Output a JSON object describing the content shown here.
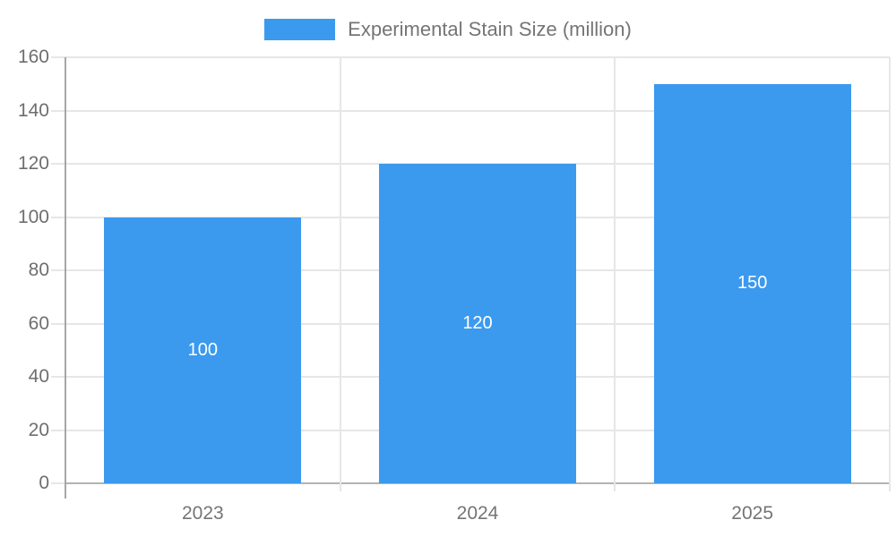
{
  "window": {
    "background": "#ffffff"
  },
  "legend": {
    "label": "Experimental Stain Size (million)"
  },
  "colors": {
    "bar": "#3B9AEE",
    "grid": "#e6e6e6",
    "axis_y_line": "#a6a6a6",
    "axis_x_line": "#b3b3b3",
    "tick_text": "#6e6e6e",
    "category_text": "#757575",
    "legend_text": "#757575",
    "value_label_text": "#ffffff"
  },
  "chart_data": {
    "type": "bar",
    "title": "",
    "categories": [
      "2023",
      "2024",
      "2025"
    ],
    "values": [
      100,
      120,
      150
    ],
    "series": [
      {
        "name": "Experimental Stain Size (million)",
        "values": [
          100,
          120,
          150
        ]
      }
    ],
    "xlabel": "",
    "ylabel": "",
    "ylim": [
      0,
      160
    ],
    "yticks": [
      0,
      20,
      40,
      60,
      80,
      100,
      120,
      140,
      160
    ],
    "grid": true,
    "legend_position": "top-center",
    "bar_color": "#3B9AEE",
    "value_labels_inside_bars": true
  }
}
